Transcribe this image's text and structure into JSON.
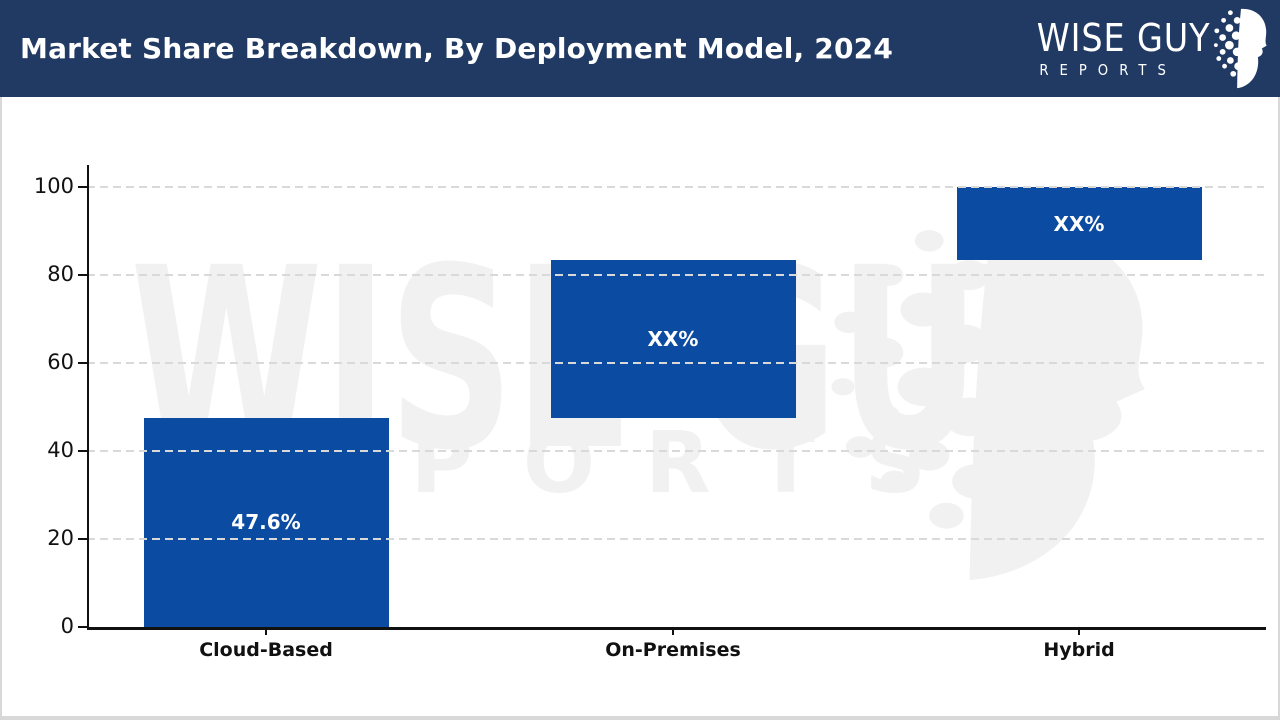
{
  "header": {
    "title": "Market Share Breakdown, By Deployment Model, 2024",
    "logo": {
      "wordmark": "WISE GUY",
      "subtext": "REPORTS",
      "face_icon": "dotted-head-profile"
    }
  },
  "watermark": {
    "line1": "WISE GUY",
    "line2": "REPORTS",
    "face_icon": "dotted-head-profile"
  },
  "colors": {
    "header_bg": "#213a63",
    "bar": "#0b4ba1",
    "grid": "#d9d9d9",
    "axis": "#111111",
    "bar_label": "#ffffff",
    "watermark": "#f1f1f2"
  },
  "chart_data": {
    "type": "bar",
    "subtype": "waterfall",
    "title": "Market Share Breakdown, By Deployment Model, 2024",
    "xlabel": "",
    "ylabel": "",
    "categories": [
      "Cloud-Based",
      "On-Premises",
      "Hybrid"
    ],
    "segments": [
      {
        "category": "Cloud-Based",
        "start": 0,
        "end": 47.6,
        "value": 47.6,
        "label": "47.6%"
      },
      {
        "category": "On-Premises",
        "start": 47.6,
        "end": 83.4,
        "value": 35.8,
        "label": "XX%"
      },
      {
        "category": "Hybrid",
        "start": 83.4,
        "end": 100,
        "value": 16.6,
        "label": "XX%"
      }
    ],
    "yticks": [
      0,
      20,
      40,
      60,
      80,
      100
    ],
    "ylim": [
      0,
      105
    ],
    "grid": "horizontal-dashed",
    "grid_above_bars": true,
    "legend": "none",
    "bar_color": "#0b4ba1"
  }
}
